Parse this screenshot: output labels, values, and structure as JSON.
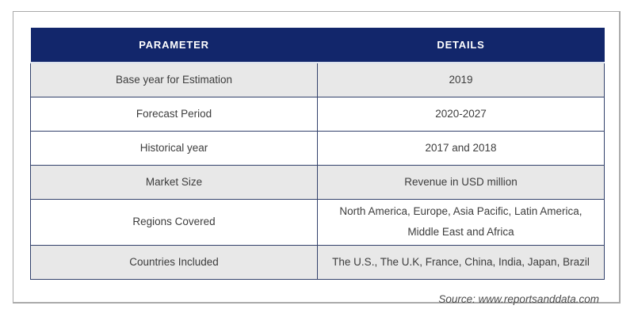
{
  "colors": {
    "header_bg": "#12266b",
    "header_text": "#ffffff",
    "shaded_row_bg": "#e8e8e8",
    "row_bg": "#ffffff",
    "cell_border": "#32416b",
    "body_text": "#3d3d3d",
    "card_border": "#aaaaaa",
    "source_text": "#4a4a4a"
  },
  "table": {
    "headers": [
      "PARAMETER",
      "DETAILS"
    ],
    "rows": [
      {
        "parameter": "Base year for Estimation",
        "details": "2019",
        "shaded": true
      },
      {
        "parameter": "Forecast Period",
        "details": "2020-2027",
        "shaded": false
      },
      {
        "parameter": "Historical year",
        "details": "2017 and 2018",
        "shaded": false
      },
      {
        "parameter": "Market Size",
        "details": "Revenue in USD million",
        "shaded": true
      },
      {
        "parameter": "Regions Covered",
        "details": "North America, Europe, Asia Pacific, Latin America, Middle East and Africa",
        "shaded": false
      },
      {
        "parameter": "Countries Included",
        "details": "The U.S., The  U.K, France, China, India, Japan, Brazil",
        "shaded": true
      }
    ]
  },
  "source": "Source: www.reportsanddata.com"
}
